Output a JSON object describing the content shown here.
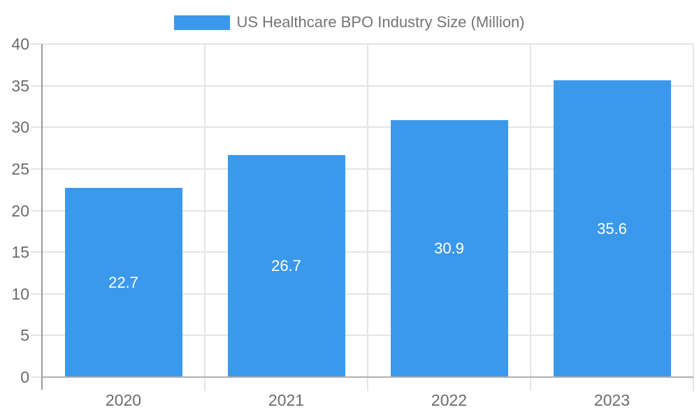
{
  "legend": {
    "label": "US Healthcare BPO Industry Size (Million)"
  },
  "colors": {
    "bar": "#3b99ec",
    "gridline": "#e4e4e4",
    "y_axis_line": "#9a9a9a",
    "x_axis_line": "#b0b0b0",
    "axis_label": "#6b6b6b",
    "legend_text": "#747474",
    "value_label": "#ffffff",
    "background": "#ffffff"
  },
  "chart_data": {
    "type": "bar",
    "title": "US Healthcare BPO Industry Size (Million)",
    "categories": [
      "2020",
      "2021",
      "2022",
      "2023"
    ],
    "values": [
      22.7,
      26.7,
      30.9,
      35.6
    ],
    "xlabel": "",
    "ylabel": "",
    "ylim": [
      0,
      40
    ],
    "ytick_step": 5,
    "ytick_labels": [
      "0",
      "5",
      "10",
      "15",
      "20",
      "25",
      "30",
      "35",
      "40"
    ],
    "grid": true,
    "vertical_gridlines": true,
    "legend_position": "top-center",
    "legend_marker": "rect",
    "value_labels_position": "inside-center",
    "bar_color": "#3b99ec"
  }
}
